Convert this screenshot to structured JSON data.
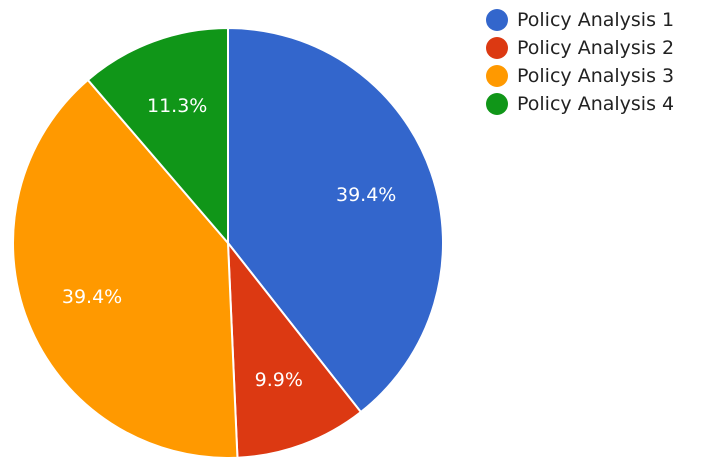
{
  "chart_data": {
    "type": "pie",
    "title": "",
    "categories": [
      "Policy Analysis 1",
      "Policy Analysis 2",
      "Policy Analysis 3",
      "Policy Analysis 4"
    ],
    "values": [
      39.4,
      9.9,
      39.4,
      11.3
    ],
    "labels": [
      "39.4%",
      "9.9%",
      "39.4%",
      "11.3%"
    ],
    "colors": [
      "#3366cc",
      "#dc3912",
      "#ff9900",
      "#109618"
    ],
    "legend_position": "right"
  }
}
